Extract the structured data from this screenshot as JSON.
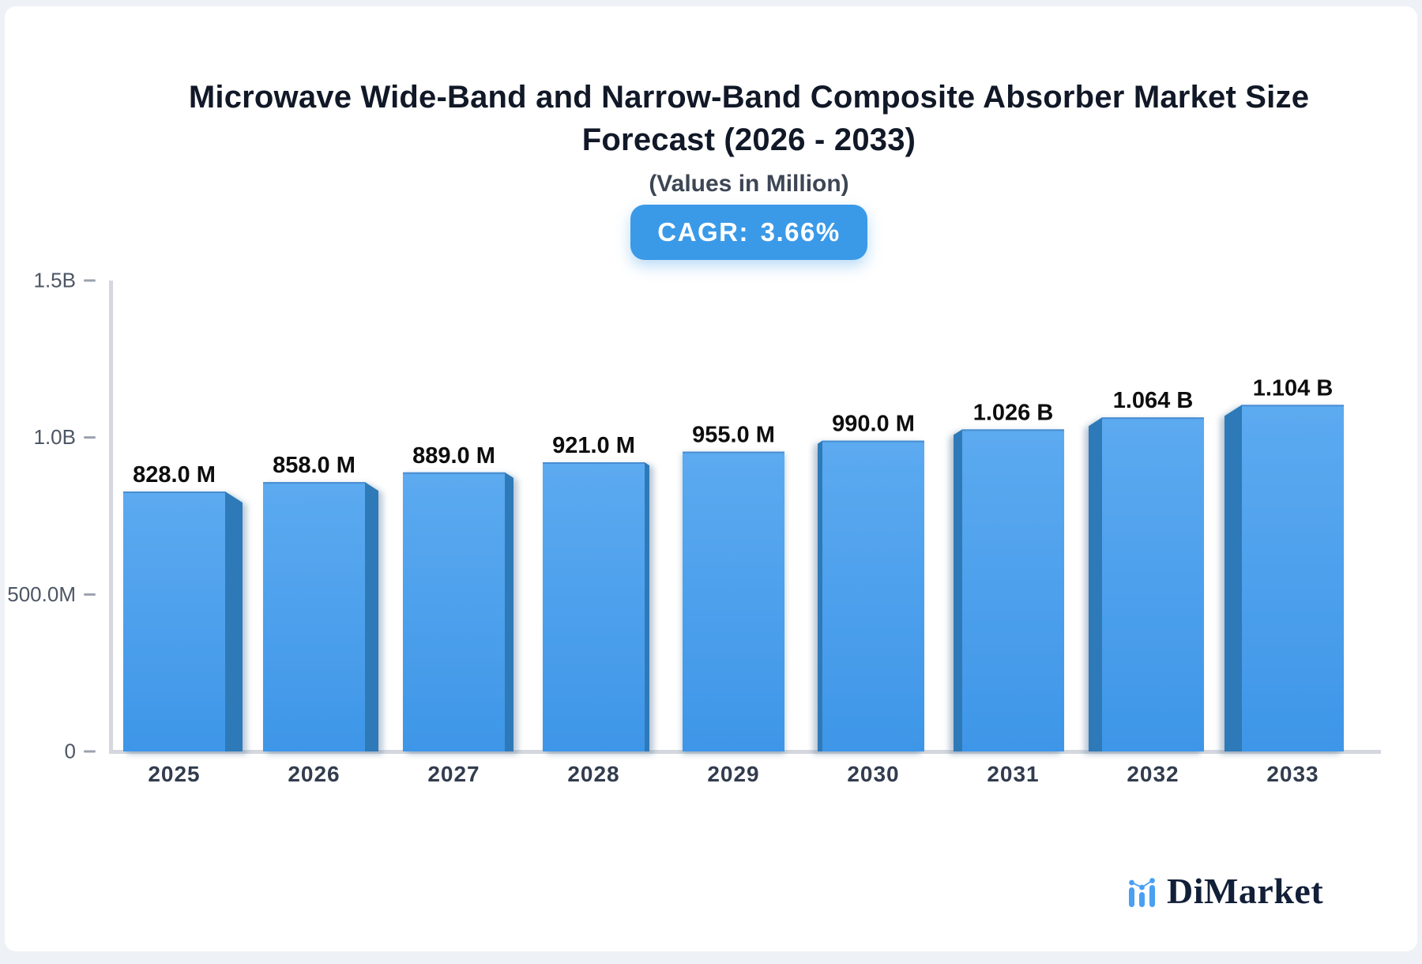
{
  "header": {
    "title_lines": {
      "line1": "Microwave Wide-Band and Narrow-Band Composite Absorber Market Size",
      "line2": "Forecast (2026 - 2033)"
    },
    "subtitle": "(Values in Million)",
    "cagr_label": "CAGR: 3.66%",
    "badge_color": "#3b9ae8"
  },
  "chart_data": {
    "type": "bar",
    "title": "Microwave Wide-Band and Narrow-Band Composite Absorber Market Size Forecast (2026 - 2033)",
    "subtitle": "(Values in Million)",
    "categories": [
      "2025",
      "2026",
      "2027",
      "2028",
      "2029",
      "2030",
      "2031",
      "2032",
      "2033"
    ],
    "values": [
      828,
      858,
      889,
      921,
      955,
      990,
      1026,
      1064,
      1104
    ],
    "value_labels": [
      "828.0 M",
      "858.0 M",
      "889.0 M",
      "921.0 M",
      "955.0 M",
      "990.0 M",
      "1.026 B",
      "1.064 B",
      "1.104 B"
    ],
    "y_ticks": [
      {
        "value": 0,
        "label": "0"
      },
      {
        "value": 500,
        "label": "500.0M"
      },
      {
        "value": 1000,
        "label": "1.0B"
      },
      {
        "value": 1500,
        "label": "1.5B"
      }
    ],
    "ylim": [
      0,
      1500
    ],
    "grid": "off",
    "legend": "none",
    "cagr_percent": 3.66,
    "colors": {
      "bar_face_top": "#5caaf0",
      "bar_face_bottom": "#3e96e8",
      "bar_side": "#2e7ab9",
      "bar_top_edge": "#4688cb",
      "axis_line": "#d4d8de",
      "tick_dash": "#9aa2ad",
      "y_label": "#4d5664",
      "x_label": "#323c4e",
      "value_label": "#0d0d0d"
    }
  },
  "logo": {
    "text": "DiMarket",
    "icon_color": "#4aa0f2",
    "text_color": "#121f38"
  }
}
